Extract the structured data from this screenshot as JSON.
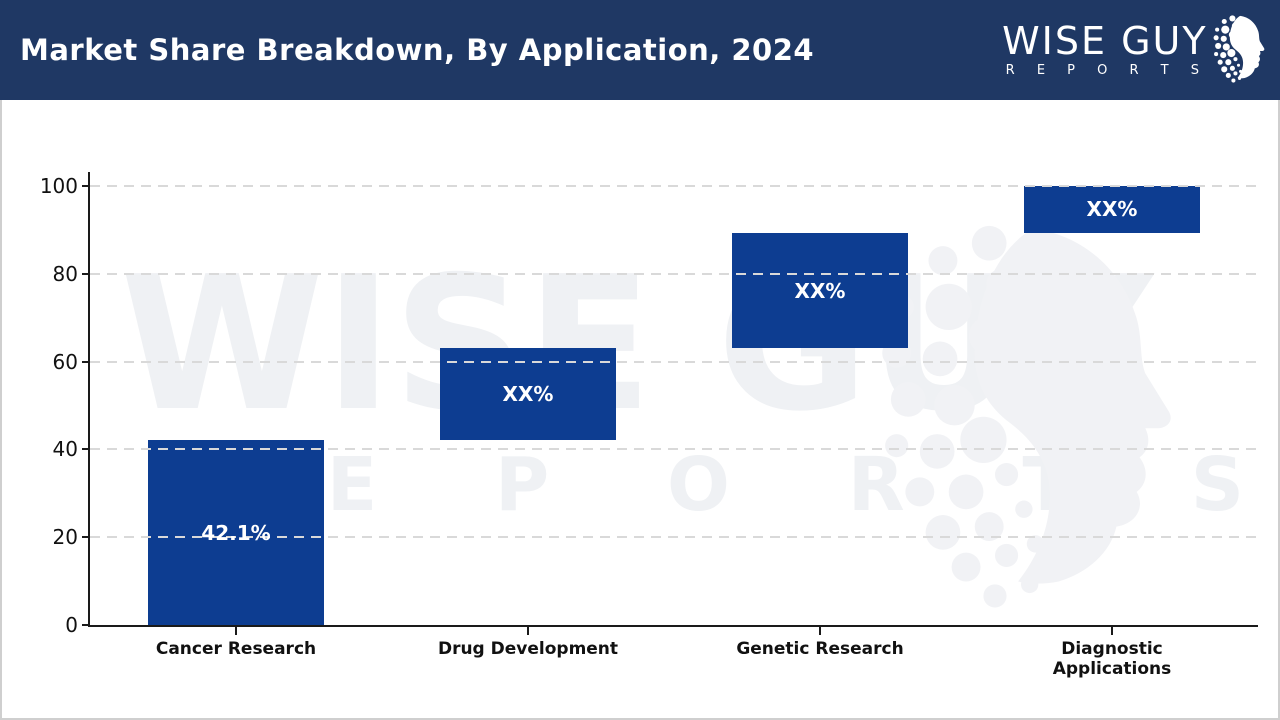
{
  "header": {
    "title": "Market Share Breakdown, By Application, 2024",
    "logo": {
      "line1": "WISE GUY",
      "line2": "R E P O R T S"
    }
  },
  "watermark": {
    "line1": "WISE GUY",
    "line2": "R E P O R T S"
  },
  "colors": {
    "header_bg": "#1f3864",
    "bar": "#0d3d91",
    "gridline": "#d9d9d9",
    "axis": "#1a1a1a",
    "watermark_gray": "#eff1f4",
    "value_label": "#ffffff",
    "frame_border": "#cfcfcf"
  },
  "chart_data": {
    "type": "bar",
    "variant": "floating-segment waterfall",
    "title": "Market Share Breakdown, By Application, 2024",
    "categories": [
      "Cancer Research",
      "Drug Development",
      "Genetic Research",
      "Diagnostic Applications"
    ],
    "series": [
      {
        "name": "Market Share",
        "segments": [
          {
            "category": "Cancer Research",
            "from": 0,
            "to": 42.1,
            "label": "42.1%"
          },
          {
            "category": "Drug Development",
            "from": 42.1,
            "to": 63,
            "label": "XX%"
          },
          {
            "category": "Genetic Research",
            "from": 63,
            "to": 89.3,
            "label": "XX%"
          },
          {
            "category": "Diagnostic Applications",
            "from": 89.3,
            "to": 100,
            "label": "XX%"
          }
        ]
      }
    ],
    "ylim": [
      0,
      100
    ],
    "yticks": [
      0,
      20,
      40,
      60,
      80,
      100
    ],
    "xlabel": "",
    "ylabel": "",
    "grid": "horizontal dashed, drawn over bars",
    "legend": "none"
  }
}
